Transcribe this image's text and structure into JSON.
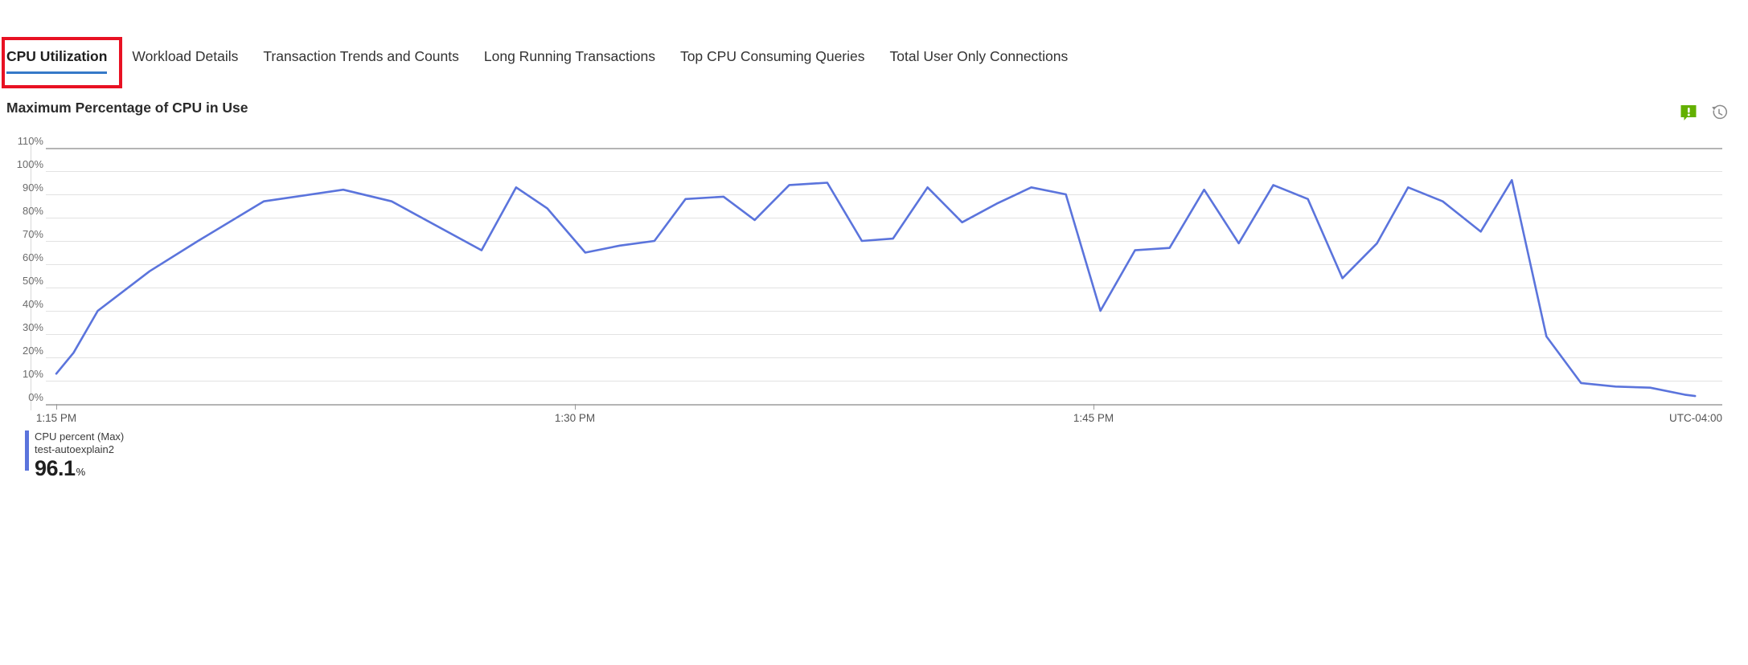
{
  "tabs": {
    "items": [
      {
        "label": "CPU Utilization",
        "selected": true,
        "annotated": true
      },
      {
        "label": "Workload Details",
        "selected": false,
        "annotated": false
      },
      {
        "label": "Transaction Trends and Counts",
        "selected": false,
        "annotated": false
      },
      {
        "label": "Long Running Transactions",
        "selected": false,
        "annotated": false
      },
      {
        "label": "Top CPU Consuming Queries",
        "selected": false,
        "annotated": false
      },
      {
        "label": "Total User Only Connections",
        "selected": false,
        "annotated": false
      }
    ]
  },
  "header": {
    "title": "Maximum Percentage of CPU in Use",
    "icons": [
      {
        "name": "feedback-icon"
      },
      {
        "name": "history-icon"
      }
    ]
  },
  "legend": {
    "series_label": "CPU percent (Max)",
    "resource": "test-autoexplain2",
    "value": "96.1",
    "unit": "%"
  },
  "colors": {
    "line": "#5b74dc",
    "tab_underline": "#3579c8",
    "annotation_red": "#e81123",
    "feedback_green": "#63b000",
    "history_gray": "#8a8a8a"
  },
  "chart_data": {
    "type": "line",
    "title": "Maximum Percentage of CPU in Use",
    "ylabel": "CPU percent",
    "ylim": [
      0,
      110
    ],
    "grid": true,
    "legend_position": "bottom-left",
    "y_ticks": [
      {
        "value": 110,
        "label": "110%"
      },
      {
        "value": 100,
        "label": "100%"
      },
      {
        "value": 90,
        "label": "90%"
      },
      {
        "value": 80,
        "label": "80%"
      },
      {
        "value": 70,
        "label": "70%"
      },
      {
        "value": 60,
        "label": "60%"
      },
      {
        "value": 50,
        "label": "50%"
      },
      {
        "value": 40,
        "label": "40%"
      },
      {
        "value": 30,
        "label": "30%"
      },
      {
        "value": 20,
        "label": "20%"
      },
      {
        "value": 10,
        "label": "10%"
      },
      {
        "value": 0,
        "label": "0%"
      }
    ],
    "x_ticks": [
      {
        "t": 0,
        "label": "1:15 PM"
      },
      {
        "t": 15,
        "label": "1:30 PM"
      },
      {
        "t": 30,
        "label": "1:45 PM"
      }
    ],
    "timezone_label": "UTC-04:00",
    "x_unit": "minutes after 1:15 PM",
    "series": [
      {
        "name": "CPU percent (Max)",
        "resource": "test-autoexplain2",
        "aggregation": "Max",
        "display_value": "96.1",
        "points": [
          [
            0,
            13
          ],
          [
            0.5,
            22
          ],
          [
            1.2,
            40
          ],
          [
            2.7,
            57
          ],
          [
            4.1,
            70
          ],
          [
            6.0,
            87
          ],
          [
            8.3,
            92
          ],
          [
            9.7,
            87
          ],
          [
            12.3,
            66
          ],
          [
            13.3,
            93
          ],
          [
            14.2,
            84
          ],
          [
            15.3,
            65
          ],
          [
            16.3,
            68
          ],
          [
            17.3,
            70
          ],
          [
            18.2,
            88
          ],
          [
            19.3,
            89
          ],
          [
            20.2,
            79
          ],
          [
            21.2,
            94
          ],
          [
            22.3,
            95
          ],
          [
            23.3,
            70
          ],
          [
            24.2,
            71
          ],
          [
            25.2,
            93
          ],
          [
            26.2,
            78
          ],
          [
            27.2,
            86
          ],
          [
            28.2,
            93
          ],
          [
            29.2,
            90
          ],
          [
            30.2,
            40
          ],
          [
            31.2,
            66
          ],
          [
            32.2,
            67
          ],
          [
            33.2,
            92
          ],
          [
            34.2,
            69
          ],
          [
            35.2,
            94
          ],
          [
            36.2,
            88
          ],
          [
            37.2,
            54
          ],
          [
            38.2,
            69
          ],
          [
            39.1,
            93
          ],
          [
            40.1,
            87
          ],
          [
            41.2,
            74
          ],
          [
            42.1,
            96.1
          ],
          [
            43.1,
            29
          ],
          [
            44.1,
            9
          ],
          [
            45.1,
            7.5
          ],
          [
            46.1,
            7
          ],
          [
            47.1,
            4
          ],
          [
            47.4,
            3.4
          ]
        ]
      }
    ]
  }
}
